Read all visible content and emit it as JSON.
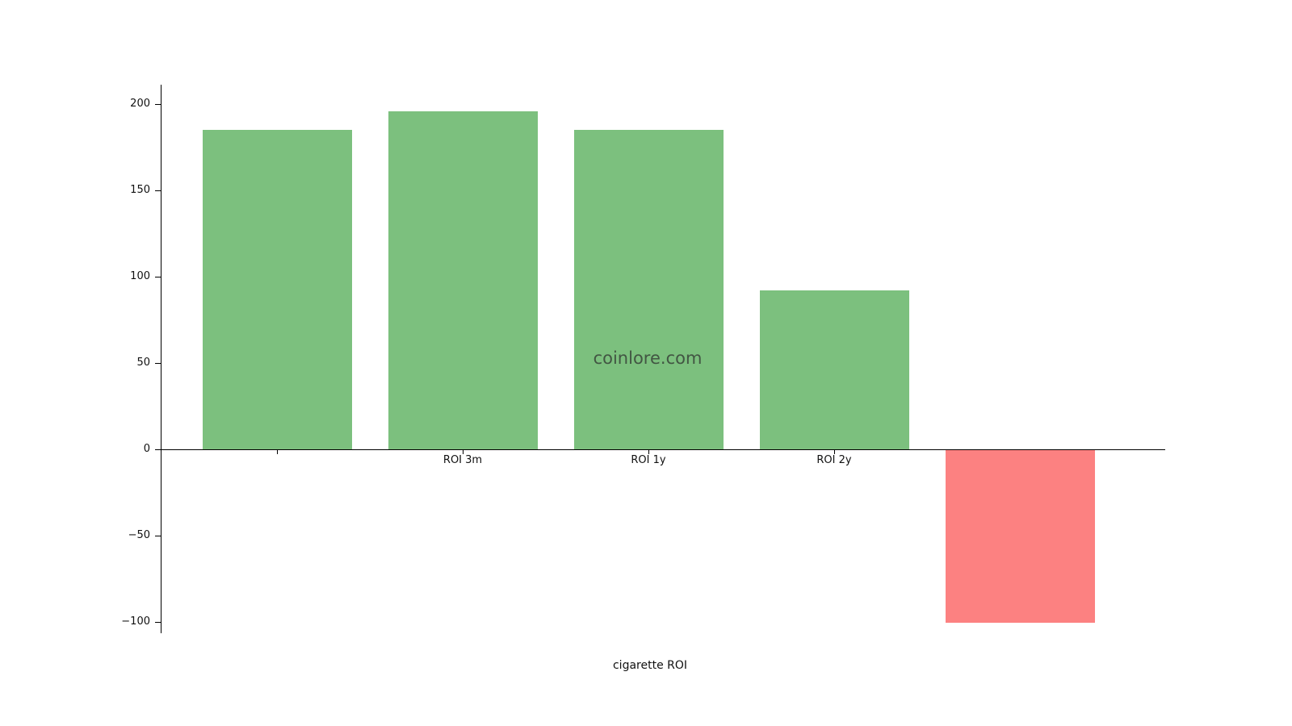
{
  "watermark": {
    "text": "coinlore.com"
  },
  "chart_data": {
    "type": "bar",
    "categories": [
      "",
      "ROI 3m",
      "ROI 1y",
      "ROI 2y",
      ""
    ],
    "values": [
      185,
      196,
      185,
      92,
      -100
    ],
    "title": "",
    "xlabel": "cigarette ROI",
    "ylabel": "",
    "yticks": [
      200,
      150,
      100,
      50,
      0,
      -50,
      -100
    ],
    "ylim": [
      -107,
      211
    ],
    "grid": false,
    "legend": null,
    "colors": {
      "positive_bar": "#7cc07e",
      "negative_bar": "#fc8181",
      "axis": "#000000",
      "text": "#111111"
    }
  }
}
